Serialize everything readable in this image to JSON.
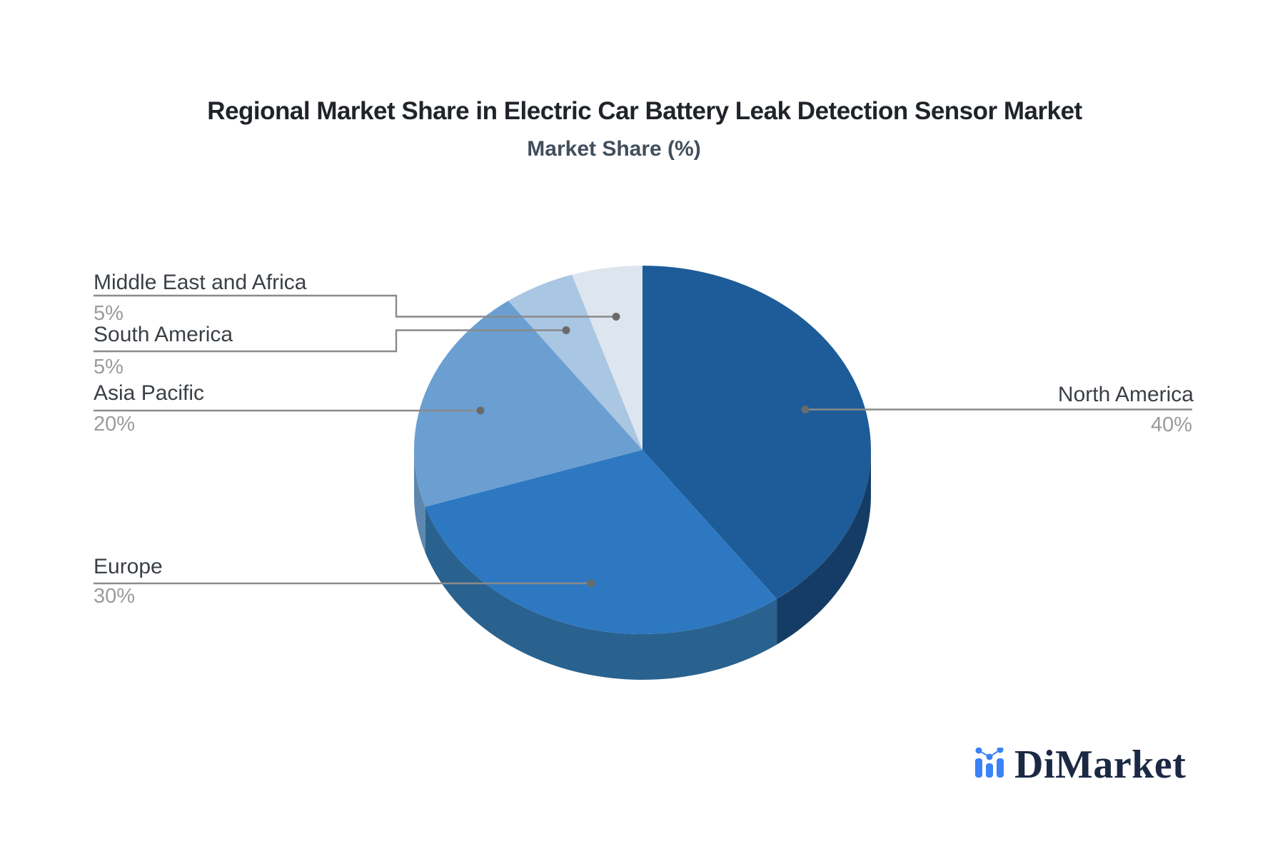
{
  "title": "Regional Market Share in Electric Car Battery Leak Detection Sensor Market",
  "subtitle": "Market Share (%)",
  "logo": {
    "text": "DiMarket",
    "icon_color": "#3b82f6",
    "text_color": "#1b2944"
  },
  "chart_data": {
    "type": "pie",
    "style": "3d",
    "title": "Regional Market Share in Electric Car Battery Leak Detection Sensor Market",
    "subtitle": "Market Share (%)",
    "unit": "%",
    "start_angle_deg": 90,
    "direction": "clockwise",
    "categories": [
      "North America",
      "Europe",
      "Asia Pacific",
      "South America",
      "Middle East and Africa"
    ],
    "values": [
      40,
      30,
      20,
      5,
      5
    ],
    "labels": [
      {
        "name": "North America",
        "pct": "40%"
      },
      {
        "name": "Europe",
        "pct": "30%"
      },
      {
        "name": "Asia Pacific",
        "pct": "20%"
      },
      {
        "name": "South America",
        "pct": "5%"
      },
      {
        "name": "Middle East and Africa",
        "pct": "5%"
      }
    ],
    "colors": [
      "#1d5c98",
      "#2d78c1",
      "#6b9fd1",
      "#a9c6e3",
      "#dde5ef"
    ],
    "side_colors": [
      "#153c64",
      "#29628f",
      "#5d87ac",
      "#8fb0cc",
      "#c2cfdf"
    ],
    "leader_line_color": "#8a8a8a",
    "leader_dot_color": "#6a6a6a",
    "legend_position": "none",
    "grid": false
  }
}
